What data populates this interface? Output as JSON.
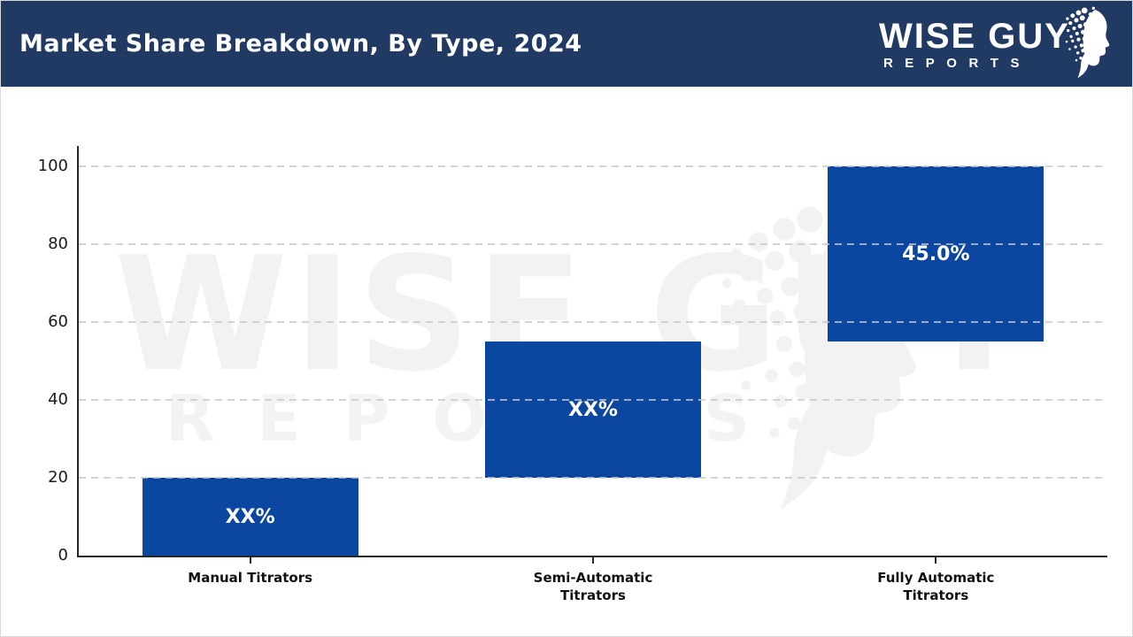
{
  "header": {
    "title": "Market Share Breakdown, By Type, 2024",
    "background_color": "#203a64",
    "logo": {
      "line1": "WISE GUY",
      "line2": "REPORTS"
    }
  },
  "watermark": {
    "line1": "WISE GUY",
    "line2": "REPORTS"
  },
  "chart_data": {
    "type": "bar",
    "variant": "floating-range-bars",
    "title": "Market Share Breakdown, By Type, 2024",
    "categories": [
      "Manual Titrators",
      "Semi-Automatic\nTitrators",
      "Fully Automatic\nTitrators"
    ],
    "series": [
      {
        "name": "Market Share",
        "segments": [
          {
            "category": "Manual Titrators",
            "start": 0,
            "end": 20,
            "label": "XX%"
          },
          {
            "category": "Semi-Automatic Titrators",
            "start": 20,
            "end": 55,
            "label": "XX%"
          },
          {
            "category": "Fully Automatic Titrators",
            "start": 55,
            "end": 100,
            "label": "45.0%"
          }
        ]
      }
    ],
    "xlabel": "",
    "ylabel": "",
    "ylim": [
      0,
      100
    ],
    "yticks": [
      0,
      20,
      40,
      60,
      80,
      100
    ],
    "grid": "horizontal-dashed",
    "grid_over_bars": true,
    "legend": "none",
    "bar_color": "#0b46a1",
    "bar_label_color": "#ffffff",
    "axis_color": "#262626"
  }
}
